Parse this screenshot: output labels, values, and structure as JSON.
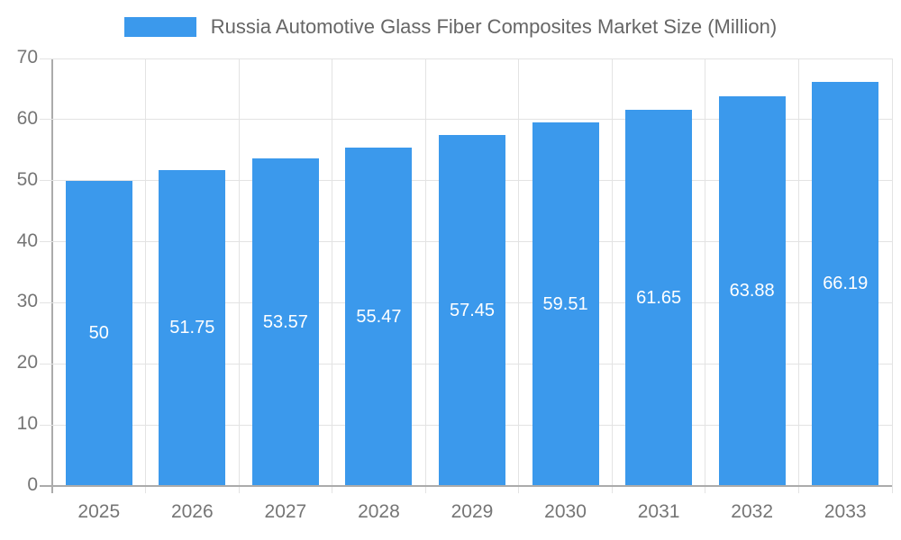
{
  "chart_data": {
    "type": "bar",
    "title": "Russia Automotive Glass Fiber Composites Market Size (Million)",
    "categories": [
      "2025",
      "2026",
      "2027",
      "2028",
      "2029",
      "2030",
      "2031",
      "2032",
      "2033"
    ],
    "values": [
      50,
      51.75,
      53.57,
      55.47,
      57.45,
      59.51,
      61.65,
      63.88,
      66.19
    ],
    "value_labels": [
      "50",
      "51.75",
      "53.57",
      "55.47",
      "57.45",
      "59.51",
      "61.65",
      "63.88",
      "66.19"
    ],
    "xlabel": "",
    "ylabel": "",
    "ylim": [
      0,
      70
    ],
    "yticks": [
      0,
      10,
      20,
      30,
      40,
      50,
      60,
      70
    ],
    "grid": true,
    "legend_position": "top",
    "colors": {
      "bar": "#3B99EC",
      "grid": "#E3E3E3",
      "axis": "#ABABAB",
      "tick_label": "#757575",
      "legend_text": "#666666",
      "value_label": "#FFFFFF",
      "background": "#FFFFFF"
    }
  }
}
